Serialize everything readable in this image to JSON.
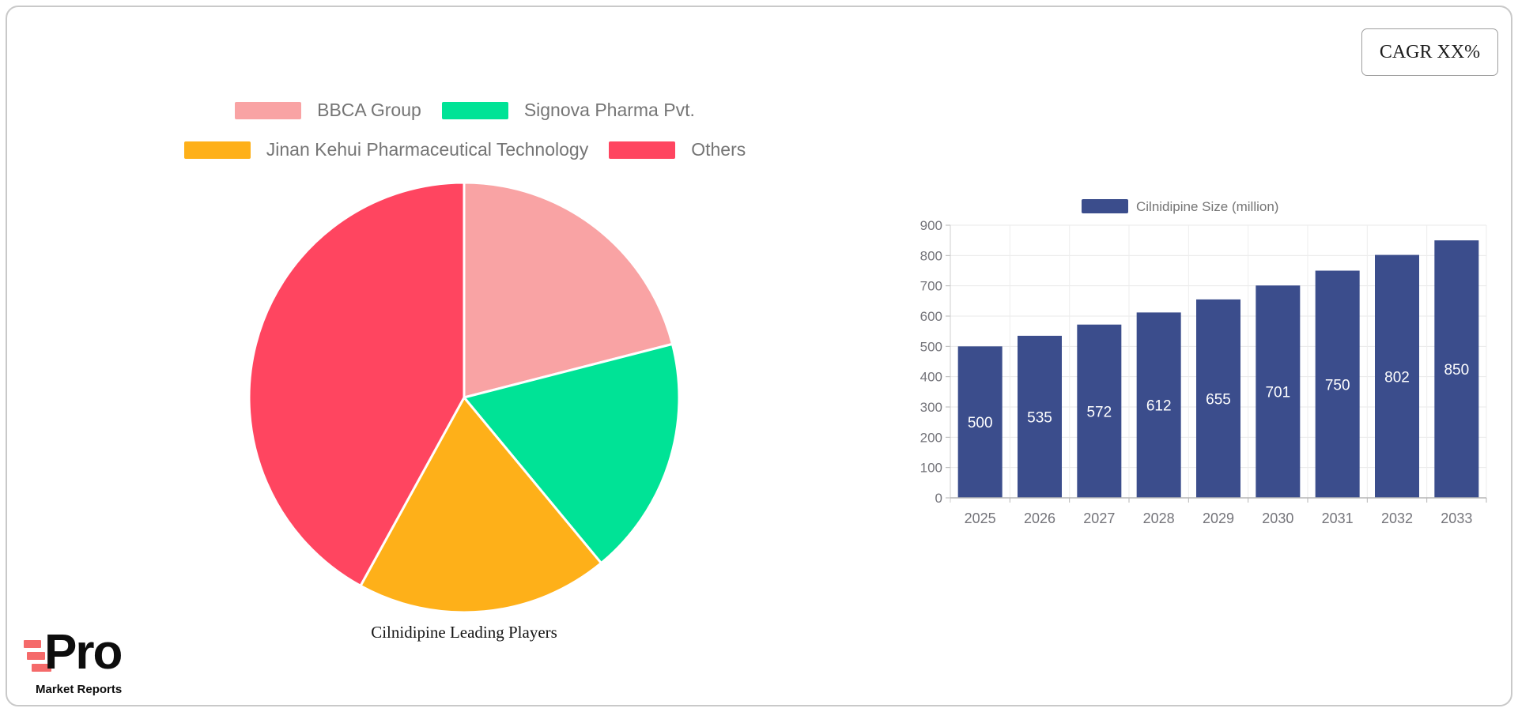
{
  "page": {
    "cagr_label": "CAGR XX%"
  },
  "logo": {
    "name": "Pro",
    "tagline": "Market Reports",
    "bar_color": "#f56a6a"
  },
  "colors": {
    "bar_fill": "#3B4D8C",
    "axis_text": "#74747a",
    "legend_text": "#757575",
    "grid_line": "#e9e9e9",
    "axis_line": "#b6b6b6"
  },
  "chart_data": [
    {
      "type": "pie",
      "title": "Cilnidipine Leading Players",
      "labels": [
        "BBCA Group",
        "Signova Pharma Pvt.",
        "Jinan Kehui Pharmaceutical Technology",
        "Others"
      ],
      "values": [
        21,
        18,
        19,
        42
      ],
      "colors": [
        "#F9A3A4",
        "#00E396",
        "#FEB019",
        "#FF4560"
      ],
      "legend_position": "top",
      "start_angle_deg": 0,
      "direction": "clockwise"
    },
    {
      "type": "bar",
      "categories": [
        "2025",
        "2026",
        "2027",
        "2028",
        "2029",
        "2030",
        "2031",
        "2032",
        "2033"
      ],
      "series": [
        {
          "name": "Cilnidipine Size (million)",
          "values": [
            500,
            535,
            572,
            612,
            655,
            701,
            750,
            802,
            850
          ]
        }
      ],
      "ylabel": "",
      "xlabel": "",
      "ylim": [
        0,
        900
      ],
      "ytick_step": 100,
      "grid": true,
      "legend_position": "top",
      "data_labels": "inside-white"
    }
  ]
}
